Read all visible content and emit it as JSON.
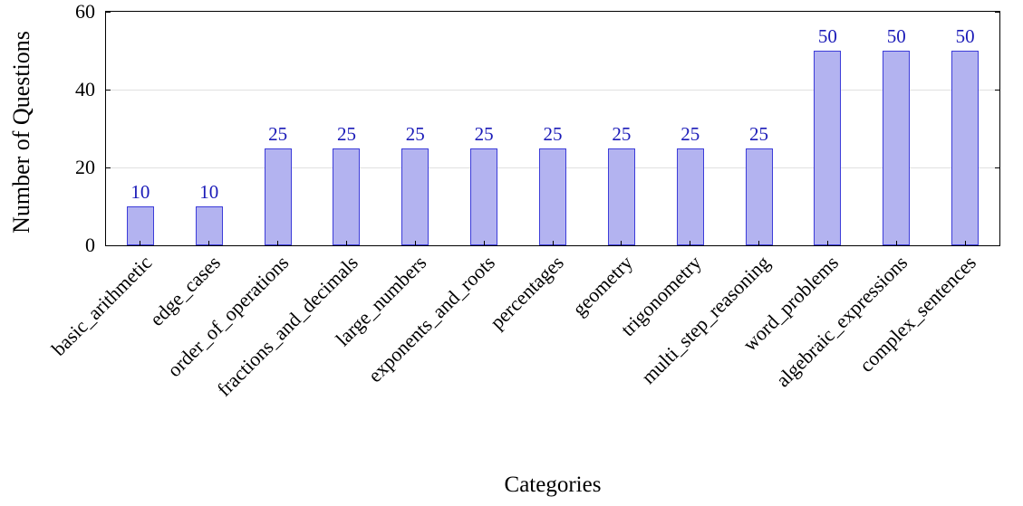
{
  "chart_data": {
    "type": "bar",
    "title": "",
    "xlabel": "Categories",
    "ylabel": "Number of Questions",
    "categories": [
      "basic_arithmetic",
      "edge_cases",
      "order_of_operations",
      "fractions_and_decimals",
      "large_numbers",
      "exponents_and_roots",
      "percentages",
      "geometry",
      "trigonometry",
      "multi_step_reasoning",
      "word_problems",
      "algebraic_expressions",
      "complex_sentences"
    ],
    "values": [
      10,
      10,
      25,
      25,
      25,
      25,
      25,
      25,
      25,
      25,
      50,
      50,
      50
    ],
    "value_labels_shown": true,
    "ylim": [
      0,
      60
    ],
    "yticks": [
      0,
      20,
      40,
      60
    ],
    "grid": true,
    "legend": "none",
    "bar_fill": "#b3b3f0",
    "bar_stroke": "#3c3cd9",
    "value_label_color": "#1a1ab8",
    "grid_color": "#e0e0e0",
    "axis_color": "#000000"
  }
}
